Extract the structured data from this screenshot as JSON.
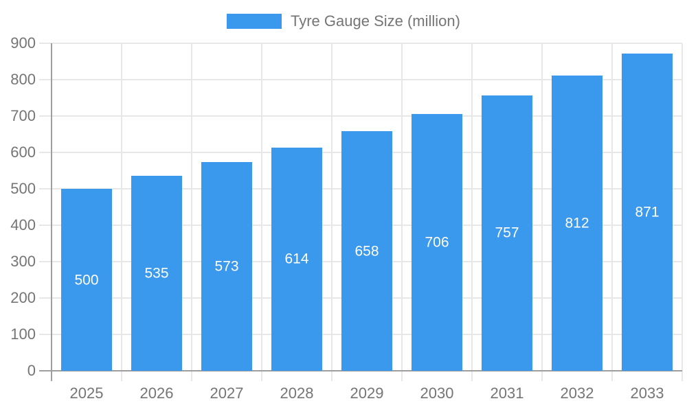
{
  "legend": {
    "label": "Tyre Gauge Size (million)"
  },
  "chart_data": {
    "type": "bar",
    "title": "",
    "categories": [
      "2025",
      "2026",
      "2027",
      "2028",
      "2029",
      "2030",
      "2031",
      "2032",
      "2033"
    ],
    "series": [
      {
        "name": "Tyre Gauge Size (million)",
        "values": [
          500,
          535,
          573,
          614,
          658,
          706,
          757,
          812,
          871
        ]
      }
    ],
    "value_labels": "inside-center",
    "xlabel": "",
    "ylabel": "",
    "ylim": [
      0,
      900
    ],
    "yticks": [
      0,
      100,
      200,
      300,
      400,
      500,
      600,
      700,
      800,
      900
    ],
    "grid": true,
    "legend_position": "top-center"
  },
  "colors": {
    "bar": "#3B99ED",
    "axis_text": "#757575",
    "value_label_text": "#FFFFFF",
    "axis_line": "#9E9E9E",
    "gridline": "#E7E7E7",
    "background": "#FFFFFF"
  }
}
